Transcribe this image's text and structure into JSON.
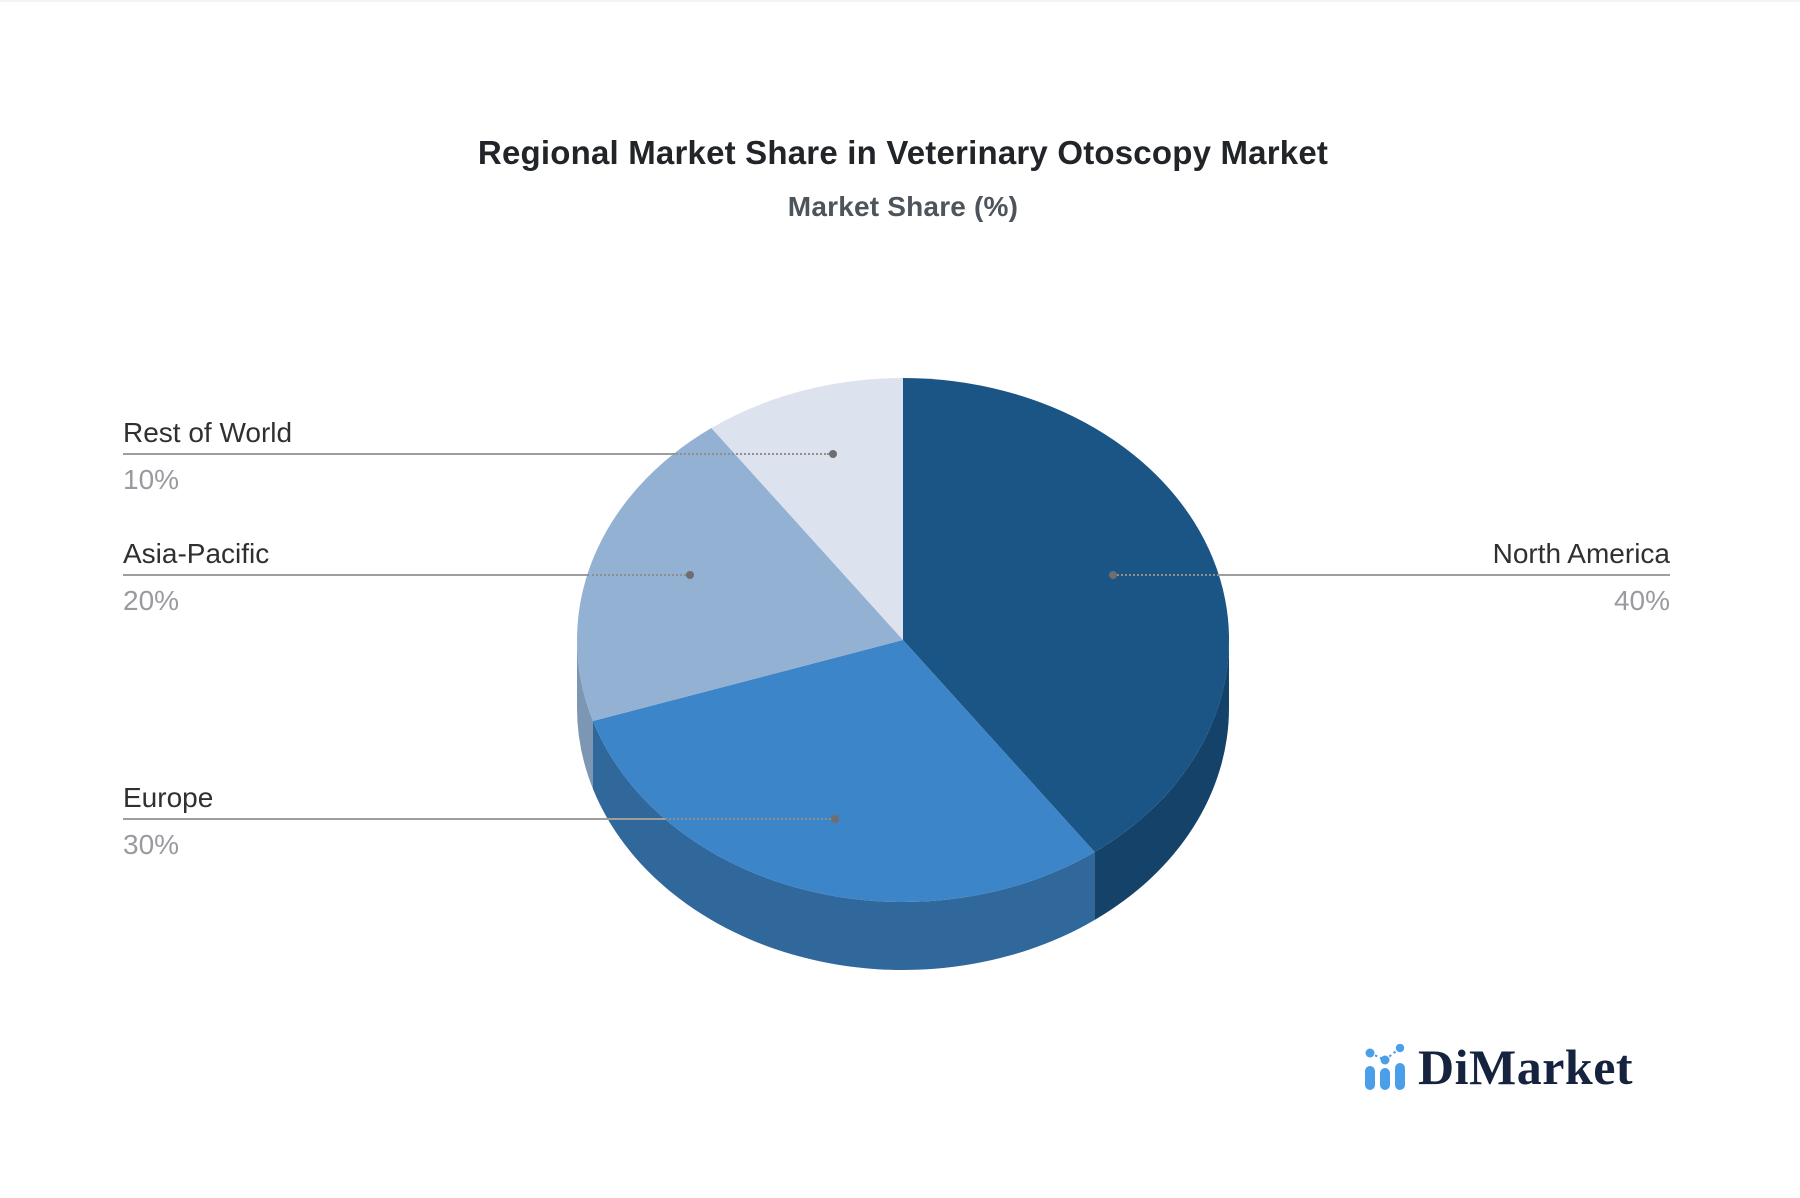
{
  "page": {
    "background": "#ffffff"
  },
  "chart_data": {
    "type": "pie",
    "title": "Regional Market Share in Veterinary Otoscopy Market",
    "subtitle": "Market Share (%)",
    "unit": "%",
    "start_angle_deg": 0,
    "direction": "clockwise",
    "effect_3d": true,
    "slices": [
      {
        "label": "North America",
        "value": 40,
        "display": "40%",
        "color": "#1B5586",
        "side_color": "#154269",
        "label_side": "right"
      },
      {
        "label": "Europe",
        "value": 30,
        "display": "30%",
        "color": "#3C85C8",
        "side_color": "#31689C",
        "label_side": "left"
      },
      {
        "label": "Asia-Pacific",
        "value": 20,
        "display": "20%",
        "color": "#93B1D3",
        "side_color": "#7D96B3",
        "label_side": "left"
      },
      {
        "label": "Rest of World",
        "value": 10,
        "display": "10%",
        "color": "#DCE3EE",
        "side_color": "#C2CBDB",
        "label_side": "left"
      }
    ]
  },
  "branding": {
    "name": "DiMarket",
    "icon": "bar-line-chart-icon",
    "icon_color": "#4B9FE8",
    "text_color": "#16233E"
  },
  "colors": {
    "title": "#212529",
    "subtitle": "#4E545B",
    "label_text": "#303030",
    "pct_text": "#9A9AA0",
    "leader_line": "#9E9E9E",
    "leader_dot": "#6E6E6E"
  }
}
